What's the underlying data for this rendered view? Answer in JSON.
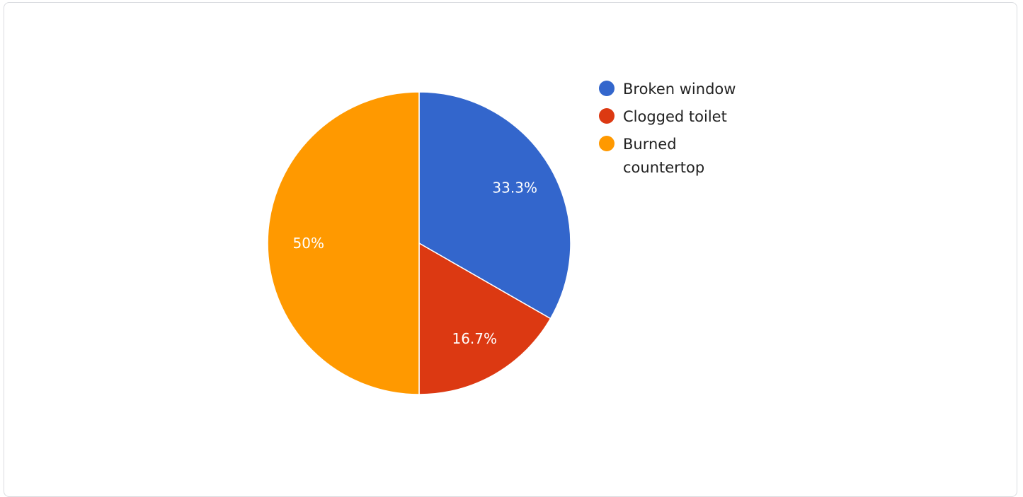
{
  "chart_data": {
    "type": "pie",
    "title": "",
    "start_angle_deg": 0,
    "direction": "clockwise",
    "legend_position": "right",
    "slices": [
      {
        "label": "Broken window",
        "value": 33.3,
        "display": "33.3%",
        "color": "#3366cc"
      },
      {
        "label": "Clogged toilet",
        "value": 16.7,
        "display": "16.7%",
        "color": "#dc3912"
      },
      {
        "label": "Burned countertop",
        "value": 50,
        "display": "50%",
        "color": "#ff9900"
      }
    ]
  }
}
